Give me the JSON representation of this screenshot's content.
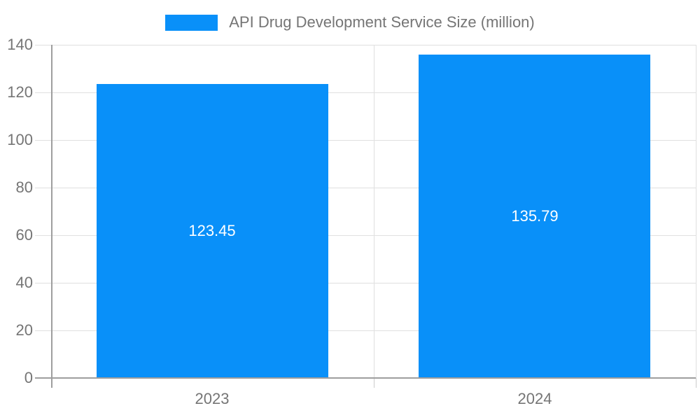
{
  "legend": {
    "label": "API Drug Development Service Size (million)"
  },
  "colors": {
    "bar": "#0990f9",
    "grid_line": "#e0e0e0",
    "axis_line": "#9e9e9e",
    "tick_line": "#cccccc",
    "label_text": "#757575",
    "value_label_text": "#ffffff",
    "background": "#ffffff"
  },
  "chart_data": {
    "type": "bar",
    "title": "",
    "legend": "API Drug Development Service Size (million)",
    "legend_position": "top",
    "categories": [
      "2023",
      "2024"
    ],
    "series": [
      {
        "name": "API Drug Development Service Size (million)",
        "values": [
          123.45,
          135.79
        ],
        "color": "#0990f9"
      }
    ],
    "value_labels": [
      "123.45",
      "135.79"
    ],
    "xlabel": "",
    "ylabel": "",
    "ylim": [
      0,
      140
    ],
    "yticks": [
      0,
      20,
      40,
      60,
      80,
      100,
      120,
      140
    ],
    "grid": true
  }
}
